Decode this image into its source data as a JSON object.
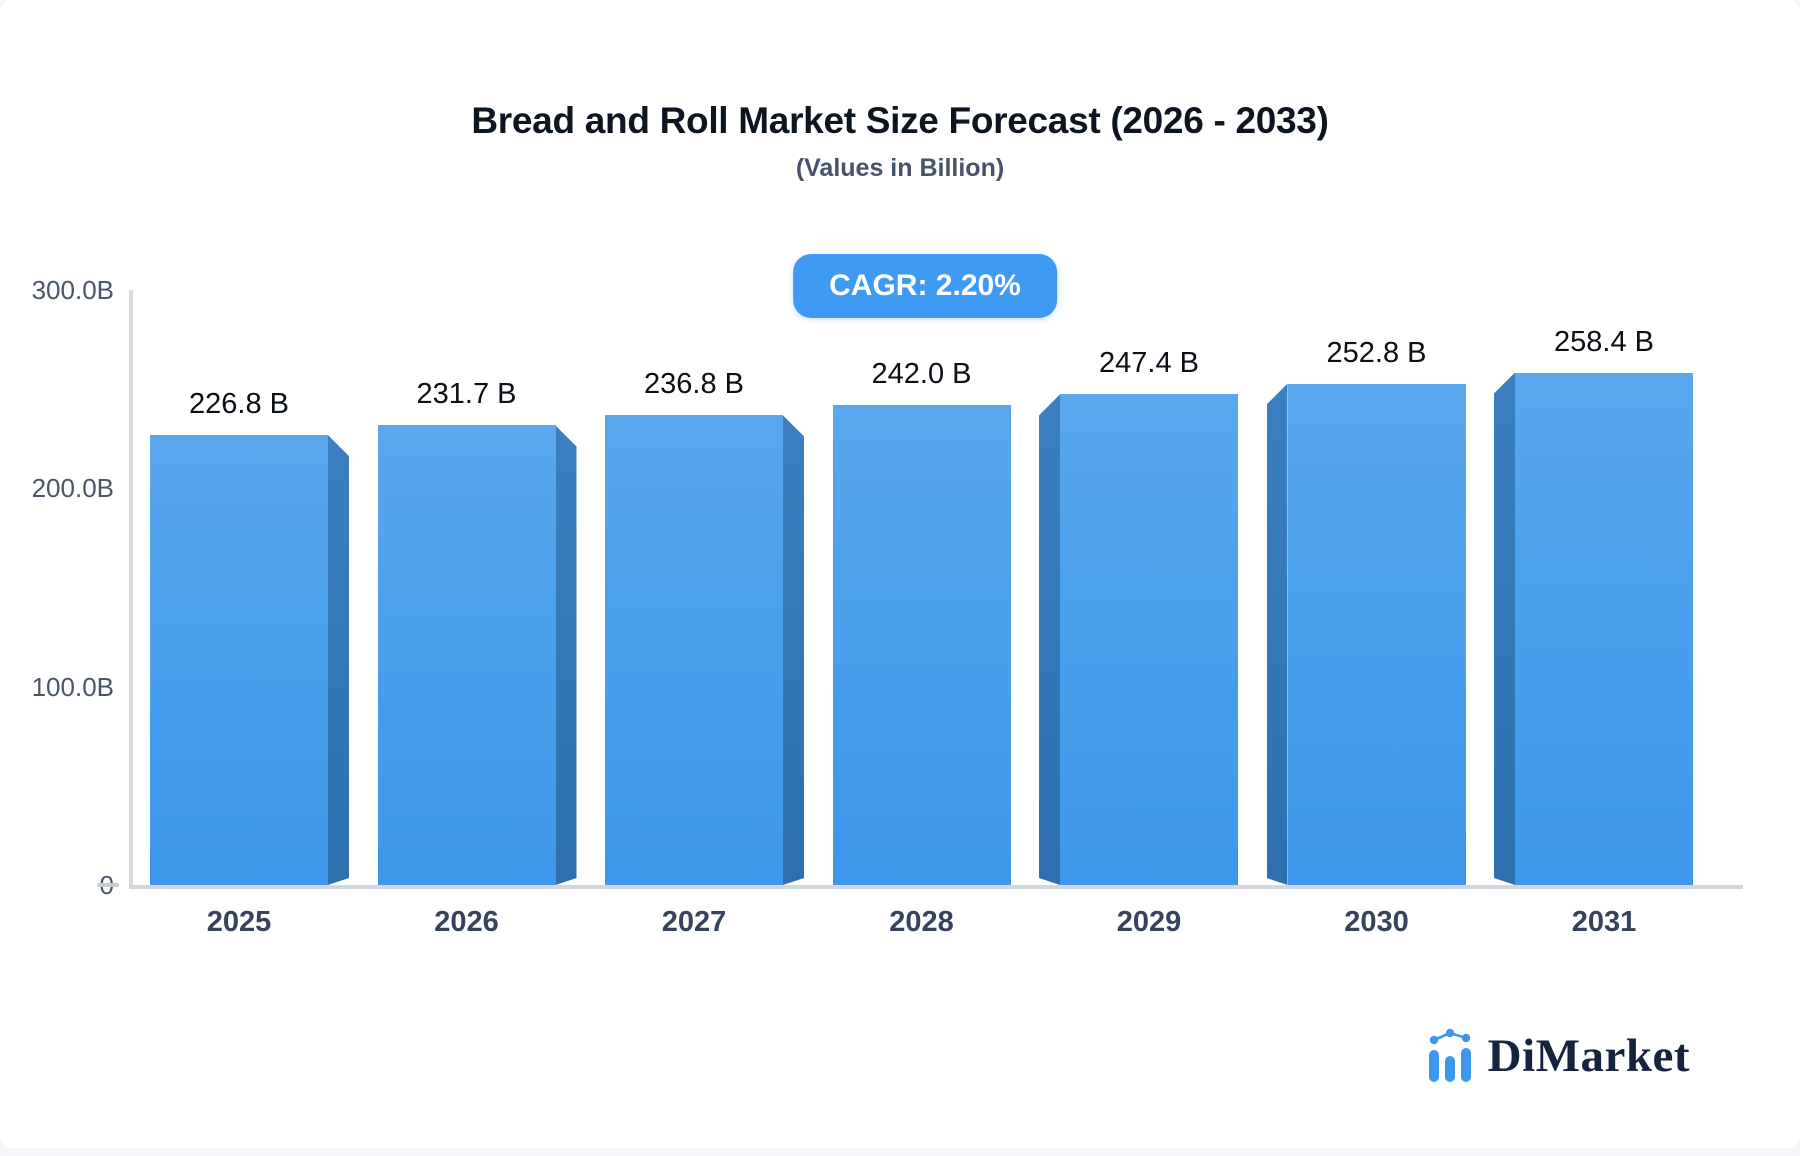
{
  "header": {
    "title": "Bread and Roll Market Size Forecast (2026 - 2033)",
    "subtitle": "(Values in Billion)"
  },
  "badge": {
    "label": "CAGR: 2.20%",
    "color": "#3e9af2"
  },
  "chart_data": {
    "type": "bar",
    "title": "Bread and Roll Market Size Forecast (2026 - 2033)",
    "subtitle": "(Values in Billion)",
    "cagr_label": "CAGR: 2.20%",
    "unit": "Billion",
    "categories": [
      "2025",
      "2026",
      "2027",
      "2028",
      "2029",
      "2030",
      "2031"
    ],
    "values": [
      226.8,
      231.7,
      236.8,
      242.0,
      247.4,
      252.8,
      258.4
    ],
    "labels": [
      "226.8 B",
      "231.7 B",
      "236.8 B",
      "242.0 B",
      "247.4 B",
      "252.8 B",
      "258.4 B"
    ],
    "ylim": [
      0,
      300
    ],
    "yticks": [
      {
        "label": "300.0B",
        "value": 300
      },
      {
        "label": "200.0B",
        "value": 200
      },
      {
        "label": "100.0B",
        "value": 100
      },
      {
        "label": "0",
        "value": 0
      }
    ],
    "grid": false,
    "legend": false,
    "colors": {
      "bar_top": "#5aa7ed",
      "bar_bottom": "#3d97ea",
      "bar_side": "#2d70ad",
      "axis": "#d3d6db",
      "tick_text": "#49566a",
      "value_text": "#0a0f15"
    }
  },
  "logo": {
    "text": "DiMarket",
    "icon": "bar-line-chart-icon",
    "icon_color": "#3d97ea",
    "text_color": "#16233e"
  }
}
